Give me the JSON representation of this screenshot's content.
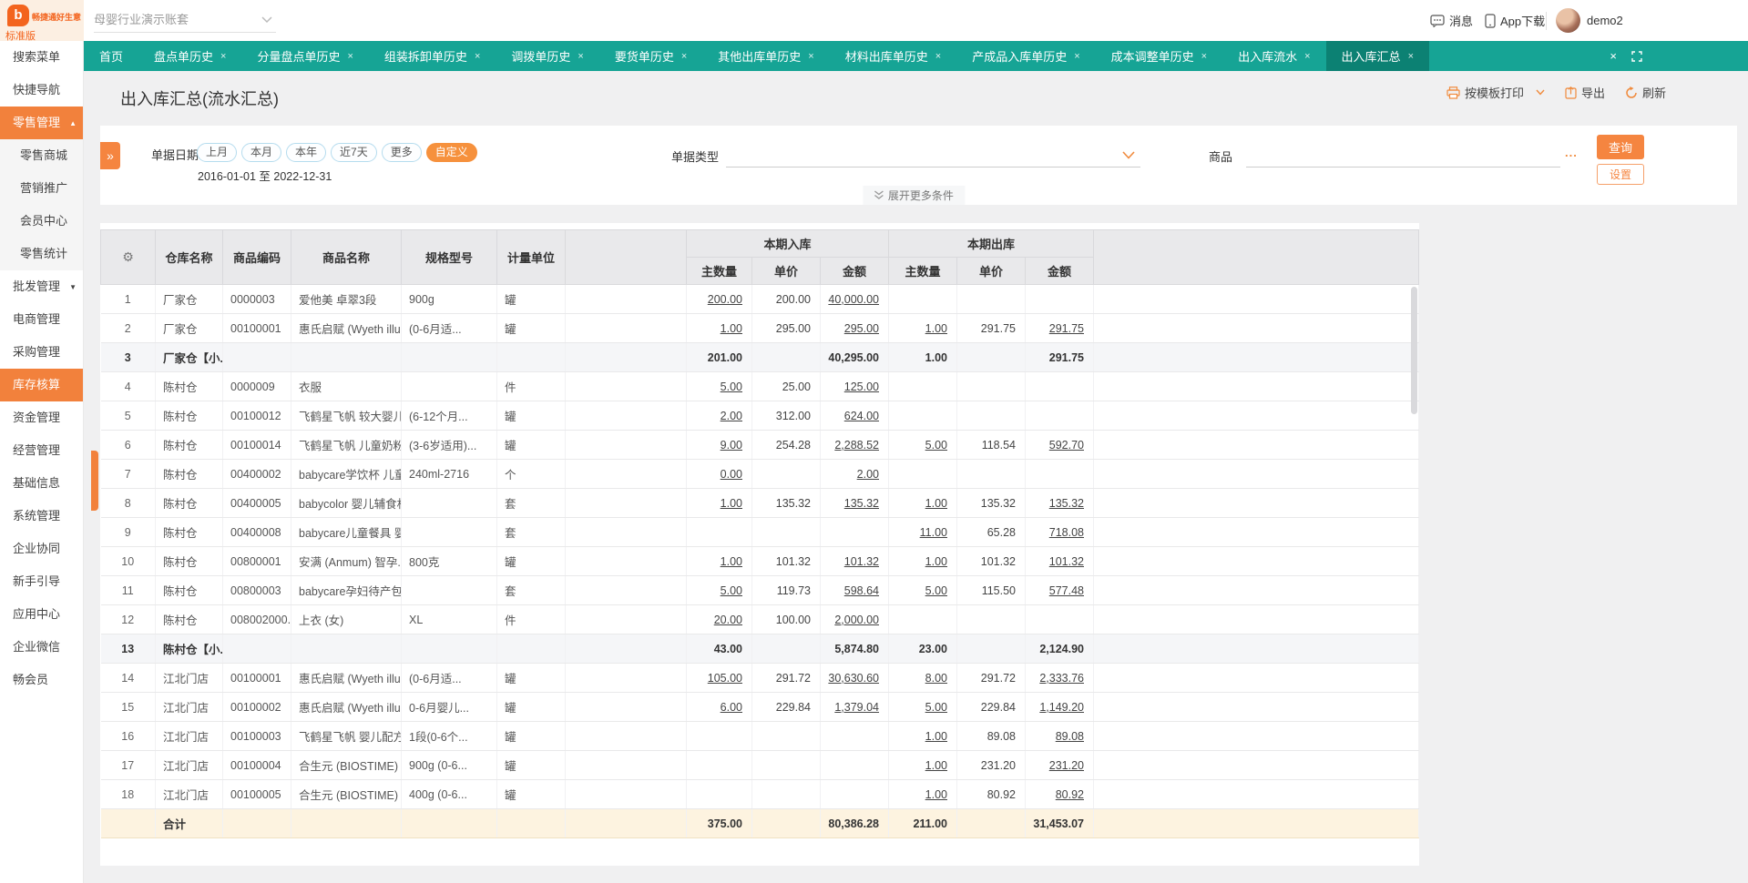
{
  "topbar": {
    "logo_title": "畅捷通好生意",
    "logo_mark": "b",
    "logo_edition": "标准版",
    "account": "母婴行业演示账套",
    "messages": "消息",
    "app_download": "App下载",
    "username": "demo2"
  },
  "tabbar": {
    "close_glyph": "×",
    "tabs": [
      {
        "label": "首页",
        "closable": false,
        "active": false
      },
      {
        "label": "盘点单历史",
        "closable": true,
        "active": false
      },
      {
        "label": "分量盘点单历史",
        "closable": true,
        "active": false
      },
      {
        "label": "组装拆卸单历史",
        "closable": true,
        "active": false
      },
      {
        "label": "调拨单历史",
        "closable": true,
        "active": false
      },
      {
        "label": "要货单历史",
        "closable": true,
        "active": false
      },
      {
        "label": "其他出库单历史",
        "closable": true,
        "active": false
      },
      {
        "label": "材料出库单历史",
        "closable": true,
        "active": false
      },
      {
        "label": "产成品入库单历史",
        "closable": true,
        "active": false
      },
      {
        "label": "成本调整单历史",
        "closable": true,
        "active": false
      },
      {
        "label": "出入库流水",
        "closable": true,
        "active": false
      },
      {
        "label": "出入库汇总",
        "closable": true,
        "active": true
      }
    ]
  },
  "sidebar": {
    "items": [
      {
        "label": "搜索菜单",
        "variant": "normal"
      },
      {
        "label": "快捷导航",
        "variant": "normal"
      },
      {
        "label": "零售管理",
        "variant": "orange",
        "arrow": "▲"
      },
      {
        "label": "零售商城",
        "variant": "child"
      },
      {
        "label": "营销推广",
        "variant": "child"
      },
      {
        "label": "会员中心",
        "variant": "child"
      },
      {
        "label": "零售统计",
        "variant": "child"
      },
      {
        "label": "批发管理",
        "variant": "normal",
        "arrow": "▼"
      },
      {
        "label": "电商管理",
        "variant": "normal"
      },
      {
        "label": "采购管理",
        "variant": "normal"
      },
      {
        "label": "库存核算",
        "variant": "orange"
      },
      {
        "label": "资金管理",
        "variant": "normal"
      },
      {
        "label": "经营管理",
        "variant": "normal"
      },
      {
        "label": "基础信息",
        "variant": "normal"
      },
      {
        "label": "系统管理",
        "variant": "normal"
      },
      {
        "label": "企业协同",
        "variant": "normal"
      },
      {
        "label": "新手引导",
        "variant": "normal"
      },
      {
        "label": "应用中心",
        "variant": "normal"
      },
      {
        "label": "企业微信",
        "variant": "normal"
      },
      {
        "label": "畅会员",
        "variant": "normal"
      }
    ]
  },
  "page": {
    "title": "出入库汇总(流水汇总)",
    "print": "按模板打印",
    "export": "导出",
    "refresh": "刷新"
  },
  "filters": {
    "date_label": "单据日期",
    "date_pills": [
      "上月",
      "本月",
      "本年",
      "近7天",
      "更多"
    ],
    "custom_pill": "自定义",
    "range": "2016-01-01 至 2022-12-31",
    "doc_type_label": "单据类型",
    "product_label": "商品",
    "ellipsis": "...",
    "search": "查询",
    "settings": "设置",
    "expand_more": "展开更多条件",
    "expand_btn": "»"
  },
  "table": {
    "headers": {
      "warehouse": "仓库名称",
      "code": "商品编码",
      "name": "商品名称",
      "spec": "规格型号",
      "unit": "计量单位",
      "group_in": "本期入库",
      "group_out": "本期出库",
      "qty": "主数量",
      "price": "单价",
      "amount": "金额"
    },
    "rows": [
      {
        "type": "data",
        "n": "1",
        "warehouse": "厂家仓",
        "code": "0000003",
        "name": "爱他美 卓翠3段",
        "spec": "900g",
        "unit": "罐",
        "in_qty": "200.00",
        "in_price": "200.00",
        "in_amt": "40,000.00",
        "out_qty": "",
        "out_price": "",
        "out_amt": ""
      },
      {
        "type": "data",
        "n": "2",
        "warehouse": "厂家仓",
        "code": "00100001",
        "name": "惠氏启赋 (Wyeth illu...",
        "spec": "(0-6月适...",
        "unit": "罐",
        "in_qty": "1.00",
        "in_price": "295.00",
        "in_amt": "295.00",
        "out_qty": "1.00",
        "out_price": "291.75",
        "out_amt": "291.75"
      },
      {
        "type": "subtotal",
        "n": "3",
        "warehouse": "厂家仓【小...",
        "code": "",
        "name": "",
        "spec": "",
        "unit": "",
        "in_qty": "201.00",
        "in_price": "",
        "in_amt": "40,295.00",
        "out_qty": "1.00",
        "out_price": "",
        "out_amt": "291.75"
      },
      {
        "type": "data",
        "n": "4",
        "warehouse": "陈村仓",
        "code": "0000009",
        "name": "衣服",
        "spec": "",
        "unit": "件",
        "in_qty": "5.00",
        "in_price": "25.00",
        "in_amt": "125.00",
        "out_qty": "",
        "out_price": "",
        "out_amt": ""
      },
      {
        "type": "data",
        "n": "5",
        "warehouse": "陈村仓",
        "code": "00100012",
        "name": "飞鹤星飞帆 较大婴儿配...",
        "spec": "(6-12个月...",
        "unit": "罐",
        "in_qty": "2.00",
        "in_price": "312.00",
        "in_amt": "624.00",
        "out_qty": "",
        "out_price": "",
        "out_amt": ""
      },
      {
        "type": "data",
        "n": "6",
        "warehouse": "陈村仓",
        "code": "00100014",
        "name": "飞鹤星飞帆 儿童奶粉 4...",
        "spec": "(3-6岁适用)...",
        "unit": "罐",
        "in_qty": "9.00",
        "in_price": "254.28",
        "in_amt": "2,288.52",
        "out_qty": "5.00",
        "out_price": "118.54",
        "out_amt": "592.70"
      },
      {
        "type": "data",
        "n": "7",
        "warehouse": "陈村仓",
        "code": "00400002",
        "name": "babycare学饮杯 儿童...",
        "spec": "240ml-2716",
        "unit": "个",
        "in_qty": "0.00",
        "in_price": "",
        "in_amt": "2.00",
        "out_qty": "",
        "out_price": "",
        "out_amt": ""
      },
      {
        "type": "data",
        "n": "8",
        "warehouse": "陈村仓",
        "code": "00400005",
        "name": "babycolor 婴儿辅食机 ...",
        "spec": "",
        "unit": "套",
        "in_qty": "1.00",
        "in_price": "135.32",
        "in_amt": "135.32",
        "out_qty": "1.00",
        "out_price": "135.32",
        "out_amt": "135.32"
      },
      {
        "type": "data",
        "n": "9",
        "warehouse": "陈村仓",
        "code": "00400008",
        "name": "babycare儿童餐具 婴...",
        "spec": "",
        "unit": "套",
        "in_qty": "",
        "in_price": "",
        "in_amt": "",
        "out_qty": "11.00",
        "out_price": "65.28",
        "out_amt": "718.08"
      },
      {
        "type": "data",
        "n": "10",
        "warehouse": "陈村仓",
        "code": "00800001",
        "name": "安满 (Anmum) 智孕...",
        "spec": "800克",
        "unit": "罐",
        "in_qty": "1.00",
        "in_price": "101.32",
        "in_amt": "101.32",
        "out_qty": "1.00",
        "out_price": "101.32",
        "out_amt": "101.32"
      },
      {
        "type": "data",
        "n": "11",
        "warehouse": "陈村仓",
        "code": "00800003",
        "name": "babycare孕妇待产包 ...",
        "spec": "",
        "unit": "套",
        "in_qty": "5.00",
        "in_price": "119.73",
        "in_amt": "598.64",
        "out_qty": "5.00",
        "out_price": "115.50",
        "out_amt": "577.48"
      },
      {
        "type": "data",
        "n": "12",
        "warehouse": "陈村仓",
        "code": "008002000...",
        "name": "上衣 (女)",
        "spec": "XL",
        "unit": "件",
        "in_qty": "20.00",
        "in_price": "100.00",
        "in_amt": "2,000.00",
        "out_qty": "",
        "out_price": "",
        "out_amt": ""
      },
      {
        "type": "subtotal",
        "n": "13",
        "warehouse": "陈村仓【小...",
        "code": "",
        "name": "",
        "spec": "",
        "unit": "",
        "in_qty": "43.00",
        "in_price": "",
        "in_amt": "5,874.80",
        "out_qty": "23.00",
        "out_price": "",
        "out_amt": "2,124.90"
      },
      {
        "type": "data",
        "n": "14",
        "warehouse": "江北门店",
        "code": "00100001",
        "name": "惠氏启赋 (Wyeth illu...",
        "spec": "(0-6月适...",
        "unit": "罐",
        "in_qty": "105.00",
        "in_price": "291.72",
        "in_amt": "30,630.60",
        "out_qty": "8.00",
        "out_price": "291.72",
        "out_amt": "2,333.76"
      },
      {
        "type": "data",
        "n": "15",
        "warehouse": "江北门店",
        "code": "00100002",
        "name": "惠氏启赋 (Wyeth illu...",
        "spec": "0-6月婴儿...",
        "unit": "罐",
        "in_qty": "6.00",
        "in_price": "229.84",
        "in_amt": "1,379.04",
        "out_qty": "5.00",
        "out_price": "229.84",
        "out_amt": "1,149.20"
      },
      {
        "type": "data",
        "n": "16",
        "warehouse": "江北门店",
        "code": "00100003",
        "name": "飞鹤星飞帆 婴儿配方奶...",
        "spec": "1段(0-6个...",
        "unit": "罐",
        "in_qty": "",
        "in_price": "",
        "in_amt": "",
        "out_qty": "1.00",
        "out_price": "89.08",
        "out_amt": "89.08"
      },
      {
        "type": "data",
        "n": "17",
        "warehouse": "江北门店",
        "code": "00100004",
        "name": "合生元 (BIOSTIME) ...",
        "spec": "900g (0-6...",
        "unit": "罐",
        "in_qty": "",
        "in_price": "",
        "in_amt": "",
        "out_qty": "1.00",
        "out_price": "231.20",
        "out_amt": "231.20"
      },
      {
        "type": "data",
        "n": "18",
        "warehouse": "江北门店",
        "code": "00100005",
        "name": "合生元 (BIOSTIME) ...",
        "spec": "400g (0-6...",
        "unit": "罐",
        "in_qty": "",
        "in_price": "",
        "in_amt": "",
        "out_qty": "1.00",
        "out_price": "80.92",
        "out_amt": "80.92"
      },
      {
        "type": "total",
        "n": "",
        "warehouse": "合计",
        "code": "",
        "name": "",
        "spec": "",
        "unit": "",
        "in_qty": "375.00",
        "in_price": "",
        "in_amt": "80,386.28",
        "out_qty": "211.00",
        "out_price": "",
        "out_amt": "31,453.07"
      }
    ]
  }
}
